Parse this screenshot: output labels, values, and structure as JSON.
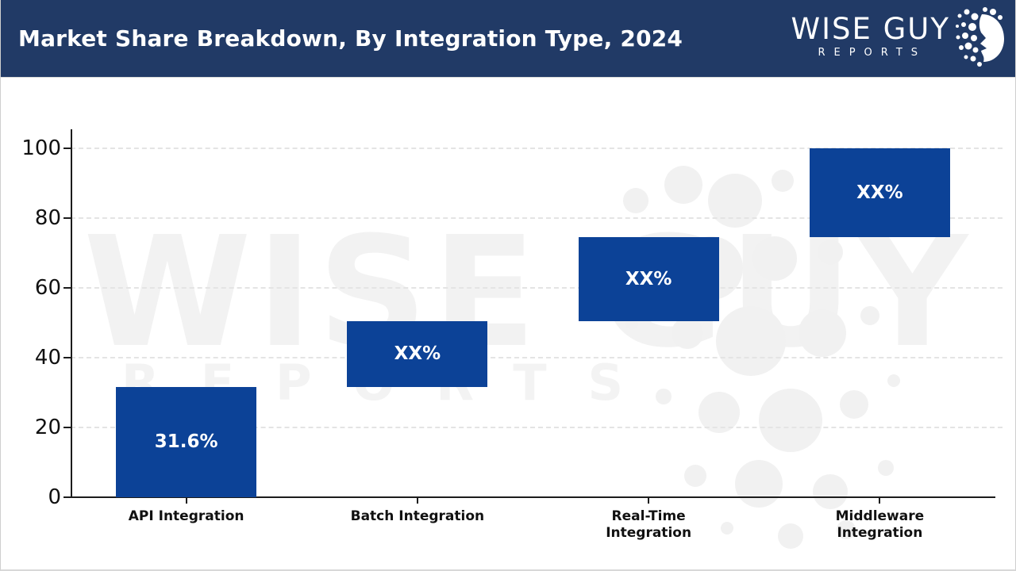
{
  "header": {
    "title": "Market Share Breakdown, By Integration Type, 2024",
    "logo": {
      "wordmark": "WISE GUY",
      "subtext": "REPORTS"
    }
  },
  "watermark": {
    "wordmark": "WISE GUY",
    "subtext": "REPORTS"
  },
  "chart_data": {
    "type": "bar",
    "subtype": "waterfall",
    "title": "Market Share Breakdown, By Integration Type, 2024",
    "categories": [
      "API Integration",
      "Batch Integration",
      "Real-Time\nIntegration",
      "Middleware\nIntegration"
    ],
    "segments": [
      {
        "category": "API Integration",
        "start": 0,
        "end": 31.6,
        "label": "31.6%"
      },
      {
        "category": "Batch Integration",
        "start": 31.6,
        "end": 50.5,
        "label": "XX%"
      },
      {
        "category": "Real-Time Integration",
        "start": 50.5,
        "end": 74.5,
        "label": "XX%"
      },
      {
        "category": "Middleware Integration",
        "start": 74.5,
        "end": 100,
        "label": "XX%"
      }
    ],
    "ylim": [
      0,
      100
    ],
    "yticks": [
      0,
      20,
      40,
      60,
      80,
      100
    ],
    "grid": "horizontal-dashed",
    "legend": "none",
    "bar_color": "#0c4297",
    "bar_label_color": "#ffffff",
    "axis_color": "#1c1c1c",
    "header_color": "#213a66"
  }
}
